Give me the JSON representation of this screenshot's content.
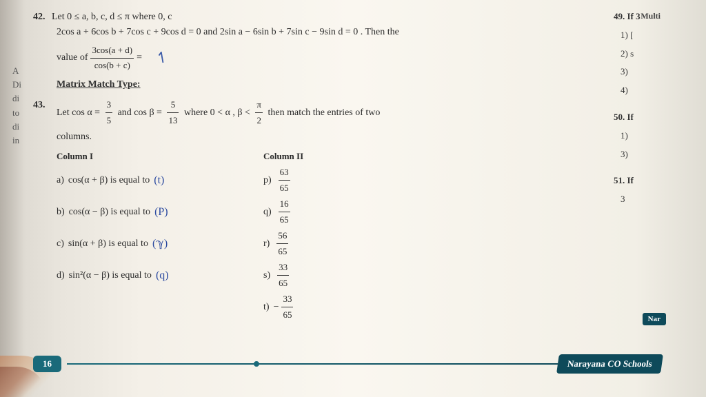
{
  "q42": {
    "number": "42.",
    "line1_a": "Let  0 ≤ a, b, c, d ≤ π   where  0, c",
    "line2": "2cos a + 6cos b + 7cos c + 9cos d = 0  and   2sin a − 6sin b + 7sin c − 9sin d = 0 .  Then the",
    "value_label": "value of",
    "frac_num": "3cos(a + d)",
    "frac_den": "cos(b + c)",
    "eq": "="
  },
  "matrix_heading": "Matrix Match Type:",
  "q43": {
    "number": "43.",
    "text_a": "Let  cos α = ",
    "f1n": "3",
    "f1d": "5",
    "text_b": "  and  cos β = ",
    "f2n": "5",
    "f2d": "13",
    "text_c": "  where  0 < α ,  β < ",
    "f3n": "π",
    "f3d": "2",
    "text_d": "  then match the entries of two",
    "columns_word": "columns.",
    "col1_h": "Column I",
    "col2_h": "Column II",
    "rows": [
      {
        "l_opt": "a)",
        "l_txt": "cos(α + β) is equal to",
        "hand": "(t)",
        "r_opt": "p)",
        "rn": "63",
        "rd": "65"
      },
      {
        "l_opt": "b)",
        "l_txt": "cos(α − β) is equal to",
        "hand": "(P)",
        "r_opt": "q)",
        "rn": "16",
        "rd": "65"
      },
      {
        "l_opt": "c)",
        "l_txt": "sin(α + β) is equal to",
        "hand": "(ℽ)",
        "r_opt": "r)",
        "rn": "56",
        "rd": "65"
      },
      {
        "l_opt": "d)",
        "l_txt": "sin²(α − β) is equal to",
        "hand": "(q)",
        "r_opt": "s)",
        "rn": "33",
        "rd": "65"
      }
    ],
    "extra_r_opt": "t)",
    "extra_r_sign": "−",
    "extra_r_n": "33",
    "extra_r_d": "65"
  },
  "left_frag": [
    "A",
    "Di",
    "di",
    "to",
    "di",
    "in"
  ],
  "right": {
    "multi": "Multi",
    "q49": "49.  If 3",
    "o1": "1) [",
    "o2": "2) s",
    "o3": "3)",
    "o4": "4)",
    "q50": "50.  If",
    "o50_1": "1)",
    "o50_3": "3)",
    "q51": "51.  If",
    "o51_3": "3"
  },
  "footer": {
    "page": "16",
    "brand": "Narayana CO Schools",
    "nar": "Nar"
  },
  "colors": {
    "teal": "#0e4a5a",
    "hand": "#2b4aa0"
  }
}
